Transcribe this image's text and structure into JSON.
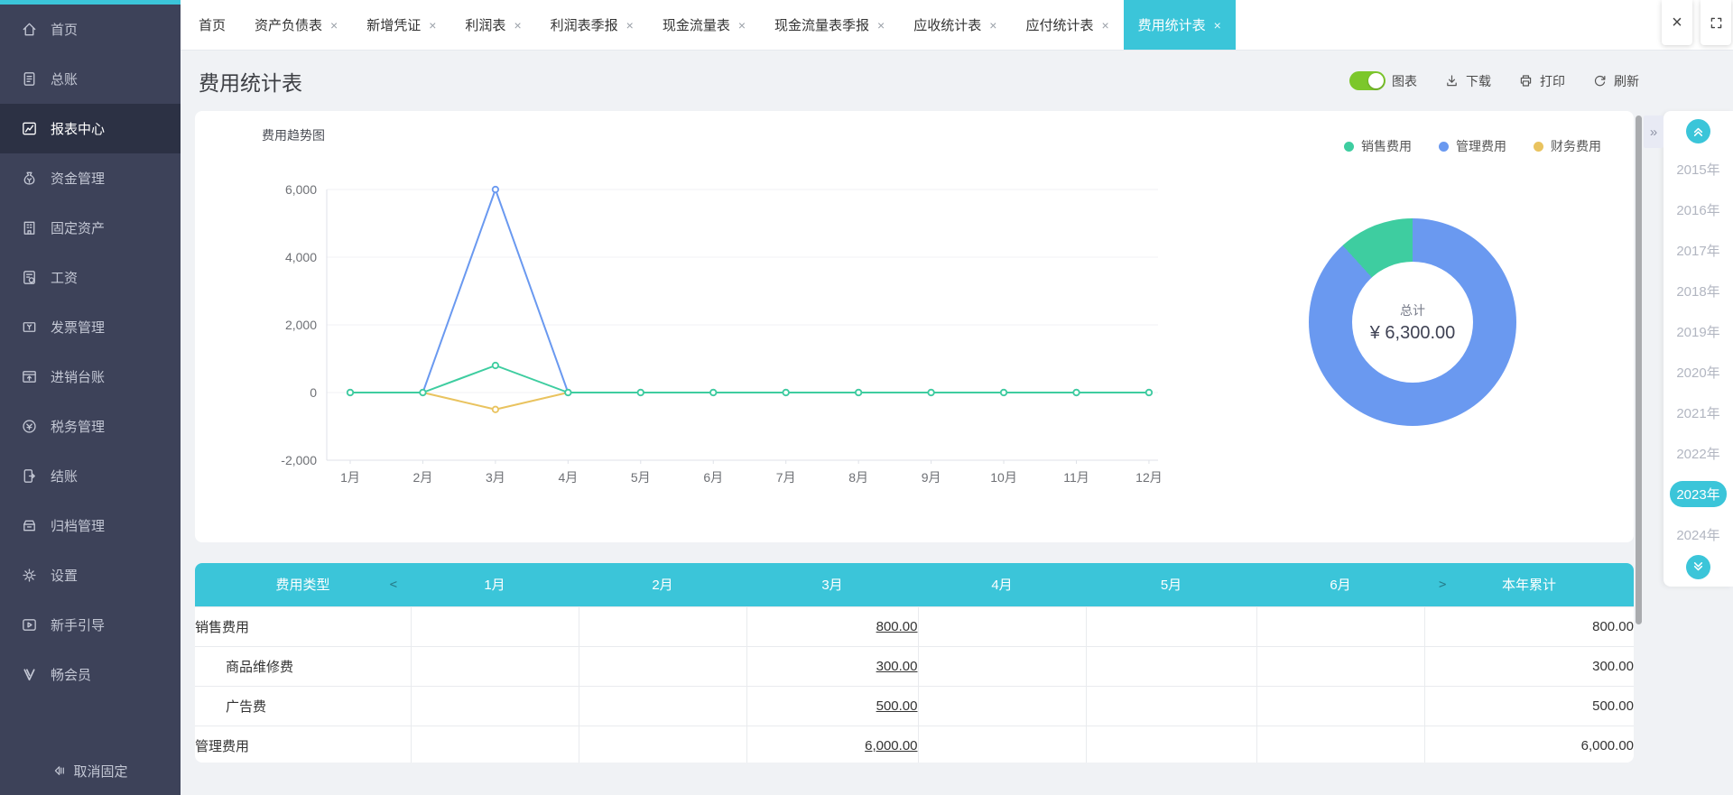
{
  "colors": {
    "accent": "#3bc5d9",
    "sidebar-bg": "#3d4259",
    "sidebar-active-bg": "#2c3144",
    "toggle-on": "#7cc72b",
    "content-bg": "#f0f2f5"
  },
  "sidebar": {
    "active": "报表中心",
    "unpin_label": "取消固定",
    "items": [
      {
        "label": "首页",
        "icon": "home-icon"
      },
      {
        "label": "总账",
        "icon": "ledger-icon"
      },
      {
        "label": "报表中心",
        "icon": "report-center-icon"
      },
      {
        "label": "资金管理",
        "icon": "funds-icon"
      },
      {
        "label": "固定资产",
        "icon": "fixed-assets-icon"
      },
      {
        "label": "工资",
        "icon": "payroll-icon"
      },
      {
        "label": "发票管理",
        "icon": "invoice-icon"
      },
      {
        "label": "进销台账",
        "icon": "inventory-icon"
      },
      {
        "label": "税务管理",
        "icon": "tax-icon"
      },
      {
        "label": "结账",
        "icon": "closing-icon"
      },
      {
        "label": "归档管理",
        "icon": "archive-icon"
      },
      {
        "label": "设置",
        "icon": "settings-icon"
      },
      {
        "label": "新手引导",
        "icon": "guide-icon"
      },
      {
        "label": "畅会员",
        "icon": "member-icon"
      }
    ]
  },
  "tabbar": {
    "tabs": [
      {
        "label": "首页",
        "closable": false,
        "active": false
      },
      {
        "label": "资产负债表",
        "closable": true,
        "active": false
      },
      {
        "label": "新增凭证",
        "closable": true,
        "active": false
      },
      {
        "label": "利润表",
        "closable": true,
        "active": false
      },
      {
        "label": "利润表季报",
        "closable": true,
        "active": false
      },
      {
        "label": "现金流量表",
        "closable": true,
        "active": false
      },
      {
        "label": "现金流量表季报",
        "closable": true,
        "active": false
      },
      {
        "label": "应收统计表",
        "closable": true,
        "active": false
      },
      {
        "label": "应付统计表",
        "closable": true,
        "active": false
      },
      {
        "label": "费用统计表",
        "closable": true,
        "active": true
      }
    ],
    "close_symbol": "×"
  },
  "header": {
    "title": "费用统计表",
    "toolbar": {
      "toggle_label": "图表",
      "toggle_on": true,
      "download_label": "下载",
      "print_label": "打印",
      "refresh_label": "刷新"
    }
  },
  "chart_data": [
    {
      "type": "line",
      "title": "费用趋势图",
      "categories": [
        "1月",
        "2月",
        "3月",
        "4月",
        "5月",
        "6月",
        "7月",
        "8月",
        "9月",
        "10月",
        "11月",
        "12月"
      ],
      "series": [
        {
          "name": "销售费用",
          "color": "#3ecda0",
          "values": [
            0,
            0,
            800,
            0,
            0,
            0,
            0,
            0,
            0,
            0,
            0,
            0
          ]
        },
        {
          "name": "管理费用",
          "color": "#6a99f0",
          "values": [
            0,
            0,
            6000,
            0,
            0,
            0,
            0,
            0,
            0,
            0,
            0,
            0
          ]
        },
        {
          "name": "财务费用",
          "color": "#e9c35f",
          "values": [
            0,
            0,
            -500,
            0,
            0,
            0,
            0,
            0,
            0,
            0,
            0,
            0
          ]
        }
      ],
      "ylim": [
        -2000,
        6000
      ],
      "ytick_step": 2000,
      "grid": true,
      "legend_position": "top-right"
    },
    {
      "type": "pie",
      "center_label": "总计",
      "center_value": "¥ 6,300.00",
      "slices": [
        {
          "name": "管理费用",
          "value": 6000,
          "color": "#6a99f0"
        },
        {
          "name": "销售费用",
          "value": 800,
          "color": "#3ecda0"
        }
      ]
    }
  ],
  "year_panel": {
    "years": [
      "2015年",
      "2016年",
      "2017年",
      "2018年",
      "2019年",
      "2020年",
      "2021年",
      "2022年",
      "2023年",
      "2024年"
    ],
    "selected": "2023年"
  },
  "expense_table": {
    "col_type": "费用类型",
    "months": [
      "1月",
      "2月",
      "3月",
      "4月",
      "5月",
      "6月"
    ],
    "total_col": "本年累计",
    "prev_arrow": "<",
    "next_arrow": ">",
    "rows": [
      {
        "label": "销售费用",
        "indent": false,
        "month_values": [
          "",
          "",
          "800.00",
          "",
          "",
          ""
        ],
        "total": "800.00"
      },
      {
        "label": "商品维修费",
        "indent": true,
        "month_values": [
          "",
          "",
          "300.00",
          "",
          "",
          ""
        ],
        "total": "300.00"
      },
      {
        "label": "广告费",
        "indent": true,
        "month_values": [
          "",
          "",
          "500.00",
          "",
          "",
          ""
        ],
        "total": "500.00"
      },
      {
        "label": "管理费用",
        "indent": false,
        "month_values": [
          "",
          "",
          "6,000.00",
          "",
          "",
          ""
        ],
        "total": "6,000.00"
      }
    ]
  }
}
